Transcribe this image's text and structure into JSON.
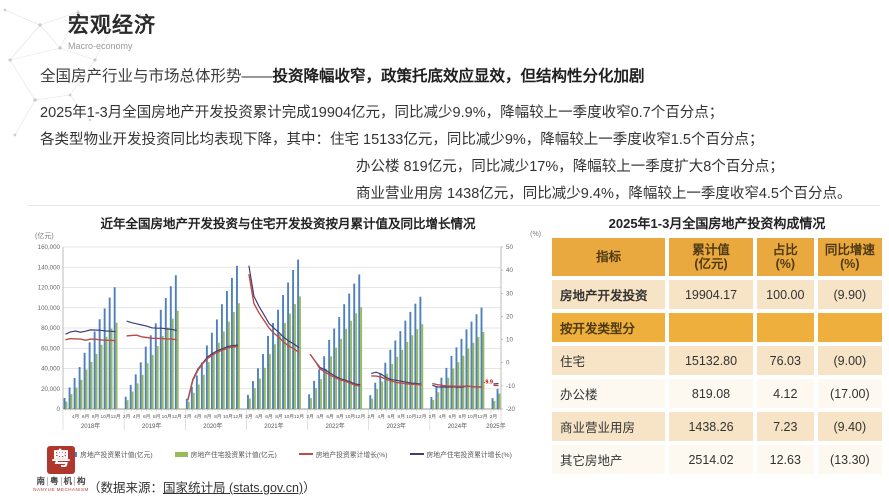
{
  "header": {
    "title_cn": "宏观经济",
    "title_en": "Macro-economy"
  },
  "headline": {
    "prefix": "全国房产行业与市场总体形势——",
    "emphasis": "投资降幅收窄，政策托底效应显效，但结构性分化加剧"
  },
  "paragraph": {
    "line1": "2025年1-3月全国房地产开发投资累计完成19904亿元，同比减少9.9%，降幅较上一季度收窄0.7个百分点；",
    "line2": "各类型物业开发投资同比均表现下降，其中：住宅 15133亿元，同比减少9%，降幅较上一季度收窄1.5个百分点；",
    "line3": "办公楼 819亿元，同比减少17%，降幅较上一季度扩大8个百分点；",
    "line4": "商业营业用房 1438亿元，同比减少9.4%，降幅较上一季度收窄4.5个百分点。"
  },
  "chart_data": {
    "type": "bar",
    "subtype": "combo bar+line, dual axis",
    "title": "近年全国房地产开发投资与住宅开发投资按月累计值及同比增长情况",
    "left_axis": {
      "label": "(亿元)",
      "min": 0,
      "max": 160000,
      "step": 20000
    },
    "right_axis": {
      "label": "(%)",
      "min": -20,
      "max": 50,
      "step": 10
    },
    "legend": [
      {
        "name": "房地产投资累计值(亿元)",
        "kind": "bar",
        "color": "#4F81BD"
      },
      {
        "name": "房地产住宅投资累计值(亿元)",
        "kind": "bar",
        "color": "#9BBB59"
      },
      {
        "name": "房地产投资累计增长(%)",
        "kind": "line",
        "color": "#BE4B48"
      },
      {
        "name": "房地产住宅投资累计增长(%)",
        "kind": "line",
        "color": "#3F3E75"
      }
    ],
    "last_point_label": "-9.9",
    "groups": [
      {
        "year": "2018年",
        "months": [
          2,
          3,
          4,
          5,
          6,
          7,
          8,
          9,
          10,
          11,
          12
        ],
        "invest_total": [
          10831,
          21291,
          30592,
          41420,
          55531,
          65886,
          76519,
          88665,
          99325,
          110083,
          120264
        ],
        "invest_housing": [
          7379,
          14631,
          21164,
          28779,
          38990,
          46443,
          54425,
          63415,
          71370,
          79324,
          85192
        ],
        "growth_total": [
          9.9,
          10.4,
          10.3,
          10.2,
          9.7,
          10.2,
          10.1,
          9.9,
          9.7,
          9.7,
          9.5
        ],
        "growth_housing": [
          12.3,
          13.3,
          13.7,
          13.2,
          13.6,
          14.2,
          14.1,
          14.0,
          13.7,
          13.6,
          13.4
        ]
      },
      {
        "year": "2019年",
        "months": [
          2,
          3,
          4,
          5,
          6,
          7,
          8,
          9,
          10,
          11,
          12
        ],
        "invest_total": [
          12090,
          23803,
          34217,
          46075,
          61609,
          72843,
          84589,
          98008,
          109603,
          121265,
          132101
        ],
        "invest_housing": [
          8711,
          17256,
          25332,
          33780,
          45167,
          53466,
          62187,
          72146,
          80666,
          89232,
          97071
        ],
        "growth_total": [
          11.6,
          11.8,
          11.9,
          11.2,
          10.9,
          10.6,
          10.5,
          10.5,
          10.3,
          10.2,
          9.9
        ],
        "growth_housing": [
          18.0,
          17.3,
          16.8,
          16.3,
          15.8,
          15.1,
          14.9,
          14.9,
          14.6,
          14.4,
          13.9
        ]
      },
      {
        "year": "2020年",
        "months": [
          2,
          3,
          4,
          5,
          6,
          7,
          8,
          9,
          10,
          11,
          12
        ],
        "invest_total": [
          10115,
          21963,
          33103,
          45920,
          62780,
          75325,
          88454,
          103484,
          116556,
          129492,
          141443
        ],
        "invest_housing": [
          7318,
          16015,
          24238,
          33765,
          46350,
          55682,
          65454,
          76562,
          86298,
          95837,
          104446
        ],
        "growth_total": [
          -16.3,
          -7.7,
          -3.3,
          -0.3,
          1.9,
          3.4,
          4.6,
          5.6,
          6.3,
          6.8,
          7.0
        ],
        "growth_housing": [
          -16.0,
          -7.2,
          -2.8,
          0.0,
          2.6,
          4.1,
          5.3,
          6.1,
          7.0,
          7.4,
          7.6
        ]
      },
      {
        "year": "2021年",
        "months": [
          2,
          3,
          4,
          5,
          6,
          7,
          8,
          9,
          10,
          11,
          12
        ],
        "invest_total": [
          13986,
          27576,
          40240,
          54318,
          72179,
          84895,
          98060,
          112568,
          124934,
          137314,
          147602
        ],
        "invest_housing": [
          10387,
          20624,
          30156,
          40750,
          54244,
          63980,
          73971,
          84906,
          94327,
          103587,
          111173
        ],
        "growth_total": [
          38.3,
          25.6,
          21.6,
          18.3,
          15.0,
          12.7,
          10.9,
          8.8,
          7.2,
          6.0,
          4.4
        ],
        "growth_housing": [
          41.9,
          28.8,
          24.4,
          20.7,
          17.0,
          14.9,
          13.0,
          10.9,
          9.3,
          8.1,
          6.4
        ]
      },
      {
        "year": "2022年",
        "months": [
          2,
          3,
          4,
          5,
          6,
          7,
          8,
          9,
          10,
          11,
          12
        ],
        "invest_total": [
          14499,
          27765,
          39154,
          52134,
          68314,
          79462,
          90809,
          103559,
          113945,
          123863,
          132895
        ],
        "invest_housing": [
          10769,
          20761,
          29527,
          39521,
          52010,
          60593,
          69312,
          79043,
          87090,
          94504,
          100646
        ],
        "growth_total": [
          3.7,
          0.7,
          -2.7,
          -4.0,
          -5.4,
          -6.4,
          -7.4,
          -8.0,
          -8.8,
          -9.8,
          -10.0
        ],
        "growth_housing": [
          3.7,
          0.7,
          -2.1,
          -3.0,
          -4.5,
          -5.8,
          -6.9,
          -7.5,
          -8.3,
          -9.2,
          -9.5
        ]
      },
      {
        "year": "2023年",
        "months": [
          2,
          3,
          4,
          5,
          6,
          7,
          8,
          9,
          10,
          11,
          12
        ],
        "invest_total": [
          13669,
          25974,
          35514,
          45701,
          58550,
          67717,
          76900,
          87269,
          95922,
          104045,
          110913
        ],
        "invest_housing": [
          10273,
          19767,
          27072,
          34809,
          44439,
          51485,
          58425,
          66279,
          72799,
          78852,
          83820
        ],
        "growth_total": [
          -5.7,
          -5.8,
          -6.2,
          -7.2,
          -7.9,
          -8.5,
          -8.8,
          -9.1,
          -9.3,
          -9.4,
          -9.6
        ],
        "growth_housing": [
          -4.6,
          -4.1,
          -4.9,
          -6.4,
          -7.3,
          -7.6,
          -8.0,
          -8.4,
          -8.8,
          -9.0,
          -9.3
        ]
      },
      {
        "year": "2024年",
        "months": [
          2,
          3,
          4,
          5,
          6,
          7,
          8,
          9,
          10,
          11,
          12
        ],
        "invest_total": [
          11842,
          22082,
          30928,
          40632,
          52529,
          60877,
          69284,
          78680,
          86309,
          93634,
          100280
        ],
        "invest_housing": [
          9038,
          16585,
          23392,
          30823,
          39883,
          46230,
          52627,
          59701,
          65478,
          71053,
          76040
        ],
        "growth_total": [
          -9.0,
          -9.5,
          -9.8,
          -10.1,
          -10.1,
          -10.2,
          -10.2,
          -10.1,
          -10.3,
          -10.4,
          -10.6
        ],
        "growth_housing": [
          -9.7,
          -10.5,
          -10.5,
          -10.6,
          -10.4,
          -10.6,
          -10.6,
          -10.1,
          -10.4,
          -10.5,
          -10.5
        ]
      },
      {
        "year": "2025年",
        "months": [
          2,
          3
        ],
        "invest_total": [
          10720,
          19904
        ],
        "invest_housing": [
          8056,
          15133
        ],
        "growth_total": [
          -9.8,
          -9.9
        ],
        "growth_housing": [
          -9.2,
          -9.0
        ]
      }
    ]
  },
  "table": {
    "title": "2025年1-3月全国房地产投资构成情况",
    "headers": [
      "指标",
      "累计值\n(亿元)",
      "占比\n(%)",
      "同比增速\n(%)"
    ],
    "rows": [
      {
        "label": "房地产开发投资",
        "value": "19904.17",
        "share": "100.00",
        "growth": "(9.90)",
        "style": "peach strong"
      },
      {
        "label": "按开发类型分",
        "value": "",
        "share": "",
        "growth": "",
        "style": "section"
      },
      {
        "label": "住宅",
        "value": "15132.80",
        "share": "76.03",
        "growth": "(9.00)",
        "style": "peach"
      },
      {
        "label": "办公楼",
        "value": "819.08",
        "share": "4.12",
        "growth": "(17.00)",
        "style": "plain"
      },
      {
        "label": "商业营业用房",
        "value": "1438.26",
        "share": "7.23",
        "growth": "(9.40)",
        "style": "peach"
      },
      {
        "label": "其它房地产",
        "value": "2514.02",
        "share": "12.63",
        "growth": "(13.30)",
        "style": "plain"
      }
    ]
  },
  "footer": {
    "logo_glyph": "粤",
    "logo_name": "南粤机构",
    "logo_sub": "NANYUE MECHANISM",
    "source_prefix": "（数据来源：",
    "source_link": "国家统计局 (stats.gov.cn)",
    "source_suffix": "）"
  }
}
